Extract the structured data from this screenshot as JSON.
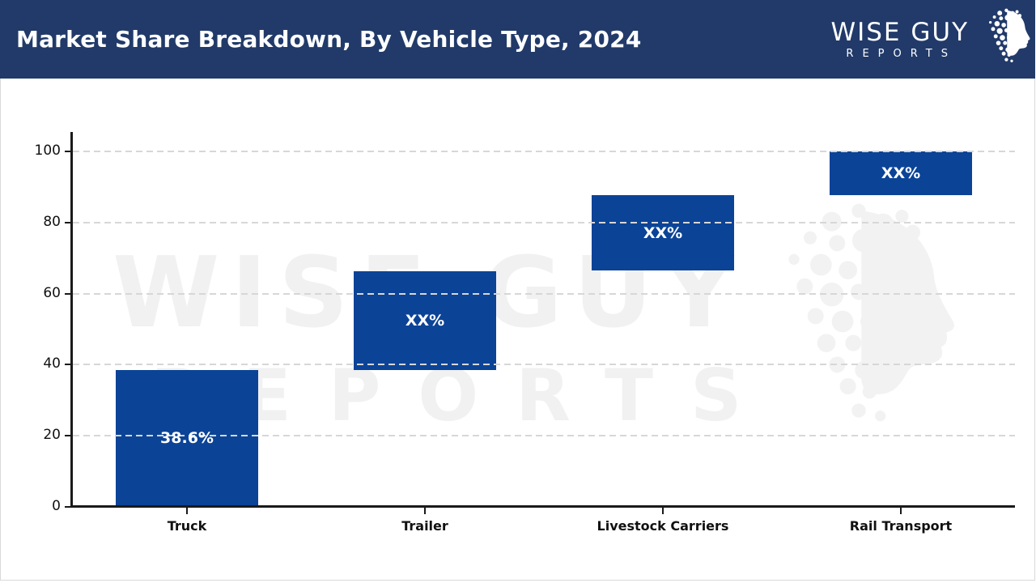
{
  "header": {
    "title": "Market Share Breakdown, By Vehicle Type, 2024",
    "logo": {
      "wordmark": "WISE GUY",
      "subtext": "REPORTS"
    }
  },
  "watermark": {
    "line1": "WISE GUY",
    "line2": "REPORTS"
  },
  "chart_data": {
    "type": "bar",
    "subtype": "waterfall",
    "title": "Market Share Breakdown, By Vehicle Type, 2024",
    "categories": [
      "Truck",
      "Trailer",
      "Livestock Carriers",
      "Rail Transport"
    ],
    "segments": [
      {
        "category": "Truck",
        "start": 0,
        "end": 38.6,
        "value": 38.6,
        "label": "38.6%"
      },
      {
        "category": "Trailer",
        "start": 38.6,
        "end": 66.4,
        "value": 27.8,
        "label": "XX%"
      },
      {
        "category": "Livestock Carriers",
        "start": 66.4,
        "end": 87.8,
        "value": 21.4,
        "label": "XX%"
      },
      {
        "category": "Rail Transport",
        "start": 87.8,
        "end": 100,
        "value": 12.2,
        "label": "XX%"
      }
    ],
    "ylim": [
      0,
      100
    ],
    "yticks": [
      0,
      20,
      40,
      60,
      80,
      100
    ],
    "xlabel": "",
    "ylabel": "",
    "grid": "horizontal-dashed",
    "legend": null,
    "colors": {
      "bar": "#0B4397",
      "bar_label": "#FFFFFF",
      "grid": "#D7D7D7",
      "axis": "#1A1A1A",
      "header_bg": "#213A69",
      "watermark": "#F1F1F1"
    }
  }
}
